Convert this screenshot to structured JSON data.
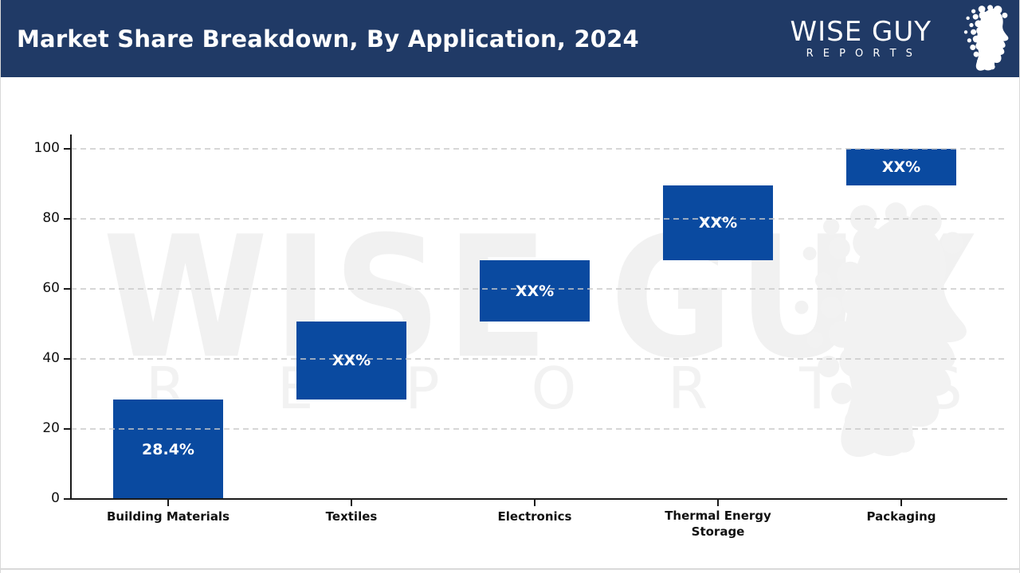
{
  "header": {
    "title": "Market Share Breakdown, By Application, 2024",
    "logo": {
      "line1": "WISE GUY",
      "line2": "R E P O R T S"
    }
  },
  "watermark": {
    "line1": "WISE GUY",
    "line2": "R E P O R T S"
  },
  "colors": {
    "header_bg": "#203a66",
    "bar": "#0a4aa0",
    "grid": "#c9c9c9",
    "axis": "#1a1a1a",
    "bar_label": "#ffffff",
    "watermark": "#f1f1f1"
  },
  "chart_data": {
    "type": "bar",
    "subtype": "waterfall",
    "title": "Market Share Breakdown, By Application, 2024",
    "categories": [
      "Building Materials",
      "Textiles",
      "Electronics",
      "Thermal Energy Storage",
      "Packaging"
    ],
    "segments": [
      {
        "category": "Building Materials",
        "start": 0,
        "end": 28.4,
        "label": "28.4%"
      },
      {
        "category": "Textiles",
        "start": 28.4,
        "end": 50.6,
        "label": "XX%"
      },
      {
        "category": "Electronics",
        "start": 50.6,
        "end": 68.2,
        "label": "XX%"
      },
      {
        "category": "Thermal Energy Storage",
        "start": 68.2,
        "end": 89.5,
        "label": "XX%"
      },
      {
        "category": "Packaging",
        "start": 89.5,
        "end": 100,
        "label": "XX%"
      }
    ],
    "xlabel": "",
    "ylabel": "",
    "ylim": [
      0,
      100
    ],
    "yticks": [
      0,
      20,
      40,
      60,
      80,
      100
    ],
    "grid": "horizontal dashed",
    "legend": "none"
  }
}
